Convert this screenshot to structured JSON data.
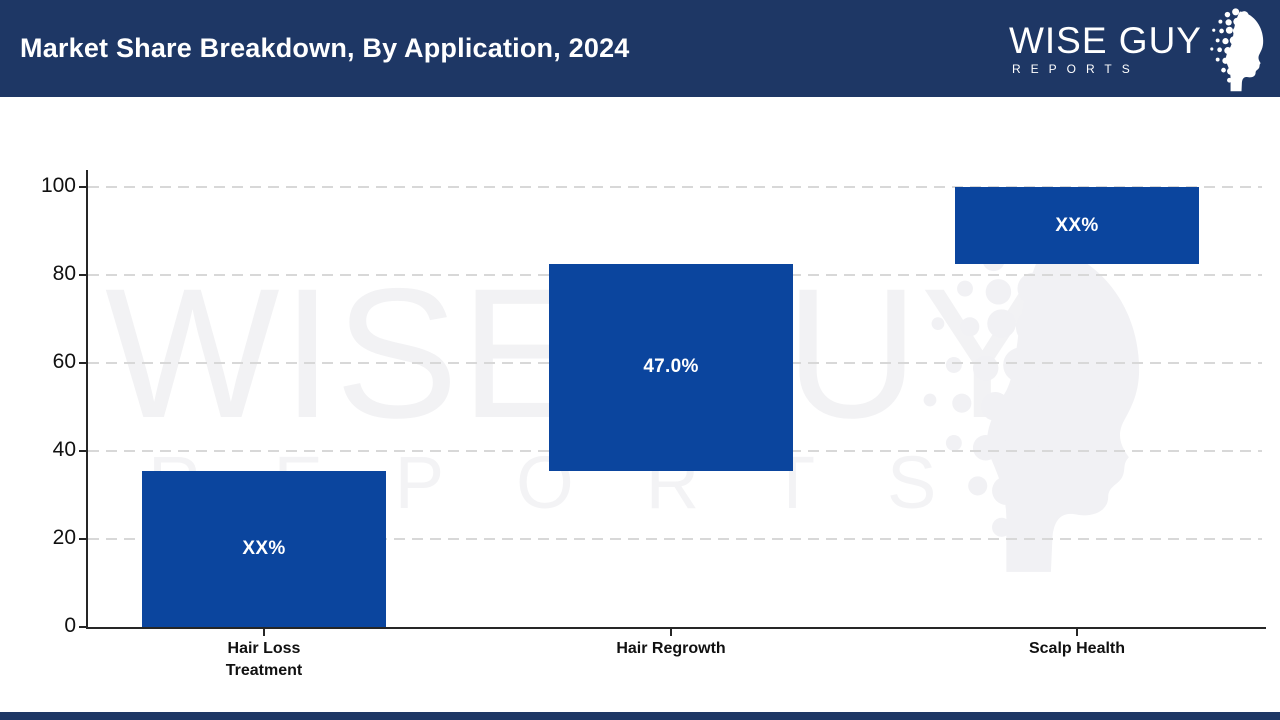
{
  "header": {
    "title": "Market Share Breakdown, By Application, 2024",
    "logo": {
      "word": "WISE GUY",
      "sub": "REPORTS"
    },
    "bg_color": "#1e3765"
  },
  "watermark": {
    "word": "WISE GUY",
    "sub": "REPORTS"
  },
  "chart_data": {
    "type": "waterfall",
    "title": "Market Share Breakdown, By Application, 2024",
    "categories": [
      "Hair Loss\nTreatment",
      "Hair Regrowth",
      "Scalp Health"
    ],
    "segments": [
      {
        "category": "Hair Loss\nTreatment",
        "label": "XX%",
        "start": 0,
        "end": 35.5
      },
      {
        "category": "Hair Regrowth",
        "label": "47.0%",
        "start": 35.5,
        "end": 82.5,
        "value": 47.0
      },
      {
        "category": "Scalp Health",
        "label": "XX%",
        "start": 82.5,
        "end": 100
      }
    ],
    "y_ticks": [
      0,
      20,
      40,
      60,
      80,
      100
    ],
    "ylim": [
      0,
      100
    ],
    "grid": "horizontal-dashed",
    "bar_color": "#0b459e",
    "bar_label_color": "#ffffff",
    "axis_color": "#262626",
    "gridline_color": "#d8d8d8",
    "legend": "none"
  }
}
